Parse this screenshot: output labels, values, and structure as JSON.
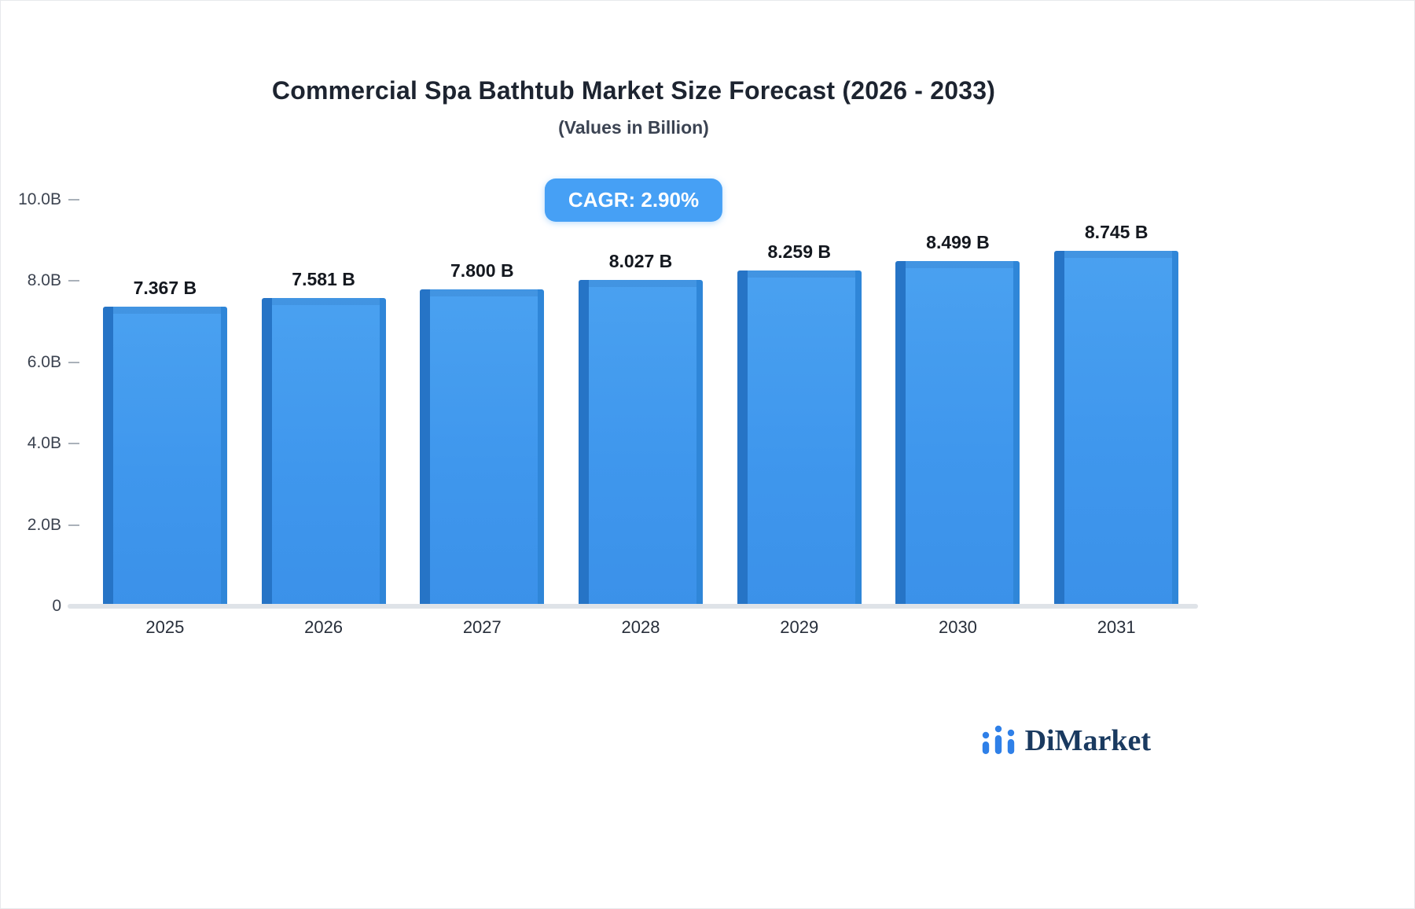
{
  "header": {
    "title": "Commercial Spa Bathtub Market Size Forecast (2026 - 2033)",
    "subtitle": "(Values in Billion)"
  },
  "badge": {
    "label": "CAGR: 2.90%",
    "background_color": "#46a0f5",
    "text_color": "#ffffff"
  },
  "chart_data": {
    "type": "bar",
    "categories": [
      "2025",
      "2026",
      "2027",
      "2028",
      "2029",
      "2030",
      "2031"
    ],
    "values": [
      7.367,
      7.581,
      7.8,
      8.027,
      8.259,
      8.499,
      8.745
    ],
    "value_labels": [
      "7.367 B",
      "7.581 B",
      "7.800 B",
      "8.027 B",
      "8.259 B",
      "8.499 B",
      "8.745 B"
    ],
    "title": "Commercial Spa Bathtub Market Size Forecast (2026 - 2033)",
    "subtitle": "(Values in Billion)",
    "xlabel": "",
    "ylabel": "",
    "ylim": [
      0,
      10
    ],
    "ytick_labels": [
      "10.0B",
      "8.0B",
      "6.0B",
      "4.0B",
      "2.0B",
      "0"
    ],
    "ytick_values": [
      10,
      8,
      6,
      4,
      2,
      0
    ],
    "grid": false,
    "legend": "none",
    "bar_color": "#3f97ed",
    "bar_side_color": "#2674c6"
  },
  "logo": {
    "text": "DiMarket",
    "text_color": "#1a3a60",
    "icon": "bar-chart-icon",
    "icon_color": "#2f80e8"
  }
}
